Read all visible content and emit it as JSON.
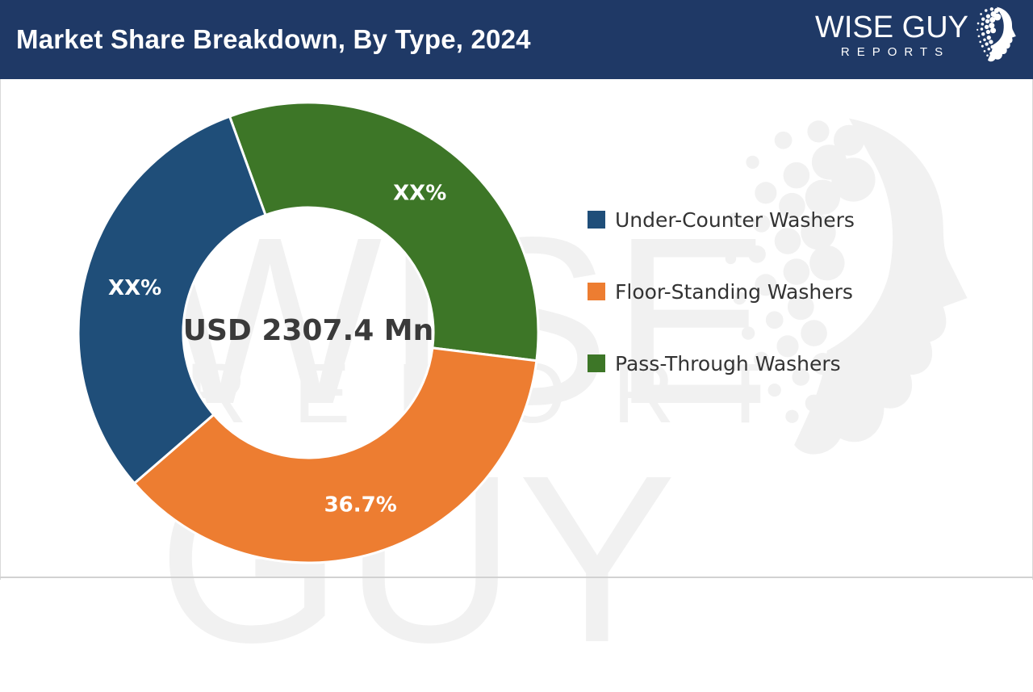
{
  "header": {
    "title": "Market Share Breakdown, By Type, 2024",
    "logo": {
      "primary": "WISE GUY",
      "secondary": "REPORTS"
    }
  },
  "watermark": {
    "primary": "WISE GUY",
    "secondary": "REPORTS"
  },
  "chart_data": {
    "type": "pie",
    "subtype": "donut",
    "title": "Market Share Breakdown, By Type, 2024",
    "center_label": "USD 2307.4 Mn",
    "start_angle_deg": -20,
    "direction": "clockwise",
    "segments": [
      {
        "label": "Pass-Through Washers",
        "display_label": "XX%",
        "value_pct": 32.5,
        "color": "#3d7627"
      },
      {
        "label": "Floor-Standing Washers",
        "display_label": "36.7%",
        "value_pct": 36.7,
        "color": "#ed7d31"
      },
      {
        "label": "Under-Counter Washers",
        "display_label": "XX%",
        "value_pct": 30.8,
        "color": "#1f4e79"
      }
    ],
    "legend": [
      {
        "label": "Under-Counter Washers",
        "color": "#1f4e79"
      },
      {
        "label": "Floor-Standing Washers",
        "color": "#ed7d31"
      },
      {
        "label": "Pass-Through Washers",
        "color": "#3d7627"
      }
    ],
    "legend_position": "right"
  },
  "colors": {
    "header_bar": "#1f3966",
    "center_text": "#3a3a3a",
    "legend_text": "#333333",
    "watermark": "#f1f1f1",
    "border": "#d9d9d9"
  }
}
